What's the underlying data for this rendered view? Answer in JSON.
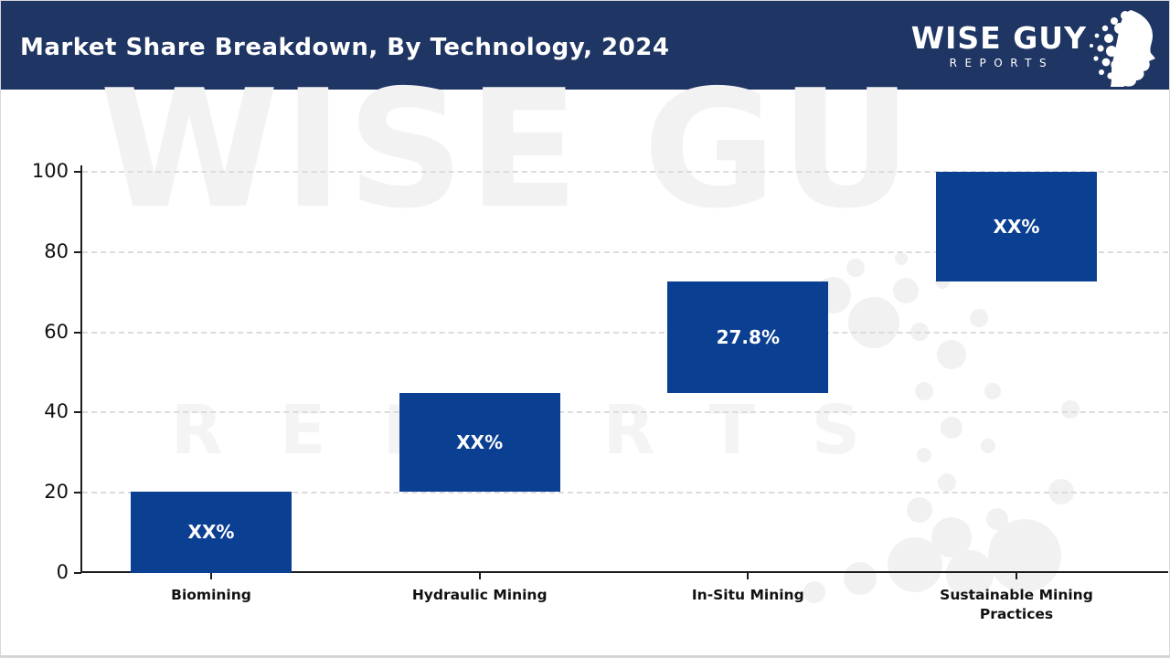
{
  "header": {
    "title": "Market Share Breakdown, By Technology, 2024",
    "brand_line1": "WISE GUY",
    "brand_line2": "REPORTS",
    "bg_color": "#1f3563"
  },
  "watermark": {
    "line1": "WISE GU",
    "line2": "REPORTS"
  },
  "chart_data": {
    "type": "bar",
    "subtype": "waterfall",
    "title": "Market Share Breakdown, By Technology, 2024",
    "categories": [
      "Biomining",
      "Hydraulic Mining",
      "In-Situ Mining",
      "Sustainable Mining Practices"
    ],
    "series": [
      {
        "name": "Market Share",
        "segments": [
          {
            "category": "Biomining",
            "start": 0,
            "end": 20.3,
            "label": "XX%"
          },
          {
            "category": "Hydraulic Mining",
            "start": 20.3,
            "end": 44.9,
            "label": "XX%"
          },
          {
            "category": "In-Situ Mining",
            "start": 44.9,
            "end": 72.7,
            "label": "27.8%"
          },
          {
            "category": "Sustainable Mining Practices",
            "start": 72.7,
            "end": 100,
            "label": "XX%"
          }
        ]
      }
    ],
    "xlabel": "",
    "ylabel": "",
    "ylim": [
      0,
      100
    ],
    "yticks": [
      0,
      20,
      40,
      60,
      80,
      100
    ],
    "grid": "horizontal-dashed",
    "legend": "none",
    "bar_color": "#0b3f92",
    "bar_label_color": "#ffffff",
    "axis_color": "#1c1c1c",
    "grid_color": "#dcdcdc"
  }
}
